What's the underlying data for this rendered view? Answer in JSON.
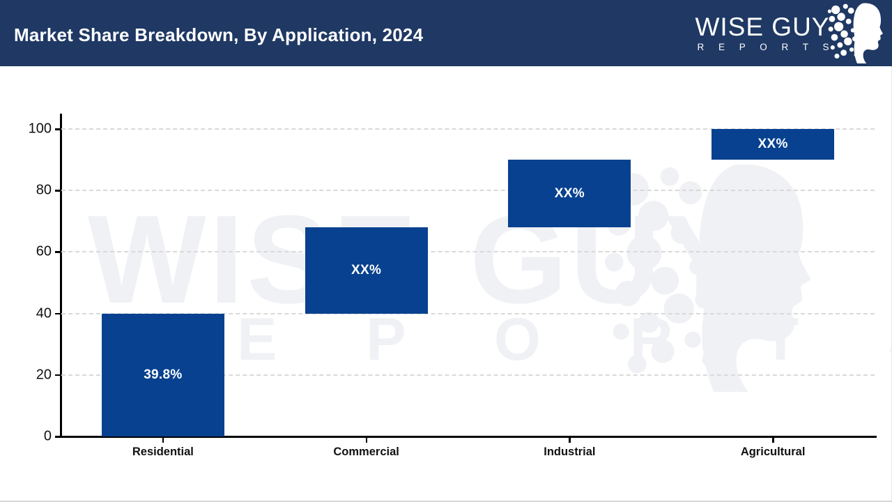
{
  "header": {
    "title": "Market Share Breakdown, By Application, 2024",
    "logo_line1": "WISE GUY",
    "logo_line2": "R E P O R T S"
  },
  "watermark": {
    "line1": "WISE GUY",
    "line2": "R E P O R T S"
  },
  "chart_data": {
    "type": "bar",
    "variant": "waterfall",
    "title": "Market Share Breakdown, By Application, 2024",
    "categories": [
      "Residential",
      "Commercial",
      "Industrial",
      "Agricultural"
    ],
    "cumulative": [
      0,
      39.8,
      68,
      90,
      100
    ],
    "values_estimated": [
      39.8,
      28.2,
      22,
      10
    ],
    "bar_labels": [
      "39.8%",
      "XX%",
      "XX%",
      "XX%"
    ],
    "xlabel": "",
    "ylabel": "",
    "ylim": [
      0,
      100
    ],
    "yticks": [
      0,
      20,
      40,
      60,
      80,
      100
    ],
    "grid": "horizontal-dashed",
    "legend": "none",
    "colors": {
      "bar": "#07418f",
      "bar_label": "#ffffff",
      "header_bg": "#1f3864",
      "grid": "#d9d9d9",
      "axis": "#000000",
      "watermark": "#f0f1f4"
    }
  }
}
